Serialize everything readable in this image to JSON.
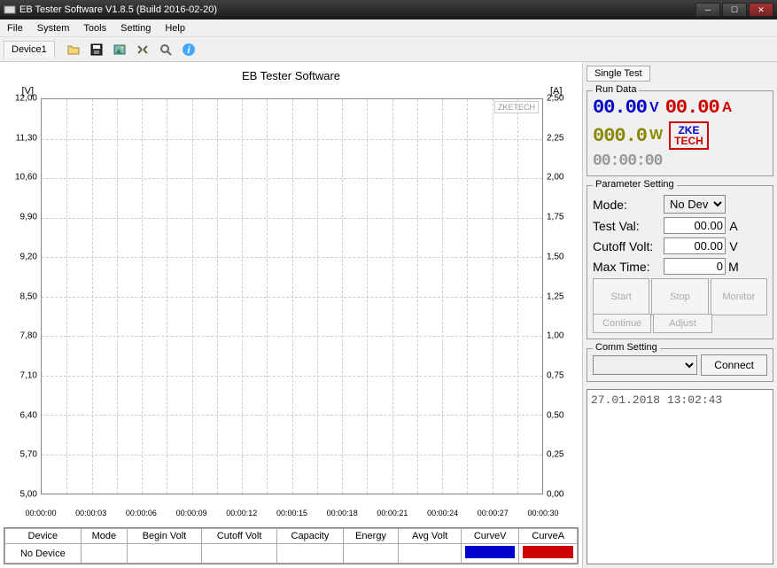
{
  "window": {
    "title": "EB Tester Software V1.8.5 (Build 2016-02-20)"
  },
  "menu": {
    "items": [
      "File",
      "System",
      "Tools",
      "Setting",
      "Help"
    ]
  },
  "toolbar": {
    "device_tab": "Device1"
  },
  "chart": {
    "title": "EB Tester Software",
    "watermark": "ZKETECH",
    "y_left": {
      "label": "[V]",
      "min": 5.0,
      "max": 12.0,
      "ticks": [
        "12,00",
        "11,30",
        "10,60",
        "9,90",
        "9,20",
        "8,50",
        "7,80",
        "7,10",
        "6,40",
        "5,70",
        "5,00"
      ]
    },
    "y_right": {
      "label": "[A]",
      "min": 0,
      "max": 2.5,
      "ticks": [
        "2,50",
        "2,25",
        "2,00",
        "1,75",
        "1,50",
        "1,25",
        "1,00",
        "0,75",
        "0,50",
        "0,25",
        "0,00"
      ]
    },
    "x_ticks": [
      "00:00:00",
      "00:00:03",
      "00:00:06",
      "00:00:09",
      "00:00:12",
      "00:00:15",
      "00:00:18",
      "00:00:21",
      "00:00:24",
      "00:00:27",
      "00:00:30"
    ],
    "grid": {
      "rows": 10,
      "cols": 20,
      "color": "#cccccc"
    }
  },
  "table": {
    "headers": [
      "Device",
      "Mode",
      "Begin Volt",
      "Cutoff Volt",
      "Capacity",
      "Energy",
      "Avg Volt",
      "CurveV",
      "CurveA"
    ],
    "row": {
      "device": "No Device",
      "mode": "",
      "begin_volt": "",
      "cutoff_volt": "",
      "capacity": "",
      "energy": "",
      "avg_volt": ""
    },
    "curve_v_color": "#0000cc",
    "curve_a_color": "#cc0000"
  },
  "right": {
    "tab": "Single Test",
    "rundata": {
      "title": "Run Data",
      "voltage": "00.00",
      "voltage_unit": "V",
      "current": "00.00",
      "current_unit": "A",
      "power": "000.0",
      "power_unit": "W",
      "time": "00:00:00",
      "logo_l1": "ZKE",
      "logo_l2": "TECH"
    },
    "params": {
      "title": "Parameter Setting",
      "mode_label": "Mode:",
      "mode_value": "No Devic",
      "testval_label": "Test Val:",
      "testval_value": "00.00",
      "testval_unit": "A",
      "cutoff_label": "Cutoff Volt:",
      "cutoff_value": "00.00",
      "cutoff_unit": "V",
      "maxtime_label": "Max Time:",
      "maxtime_value": "0",
      "maxtime_unit": "M",
      "btn_start": "Start",
      "btn_stop": "Stop",
      "btn_monitor": "Monitor",
      "btn_continue": "Continue",
      "btn_adjust": "Adjust"
    },
    "comm": {
      "title": "Comm Setting",
      "connect": "Connect"
    },
    "status": "27.01.2018 13:02:43"
  }
}
